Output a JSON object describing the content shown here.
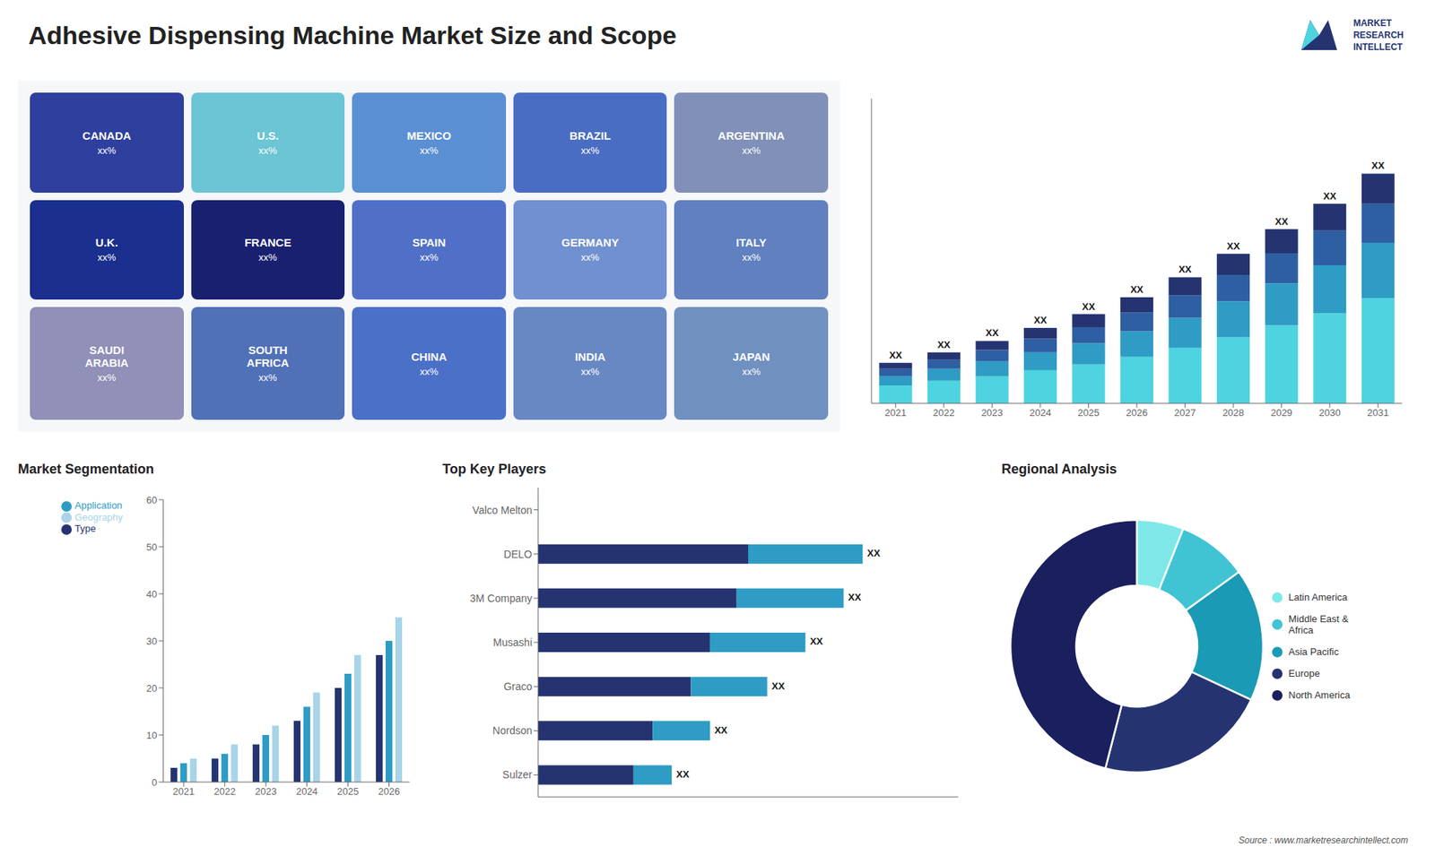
{
  "title": "Adhesive Dispensing Machine Market Size and Scope",
  "annotations": [
    "MARKET",
    "RESEARCH",
    "INTELLECT",
    "Source : www.marketresearchintellect.com"
  ],
  "chart_data": [
    {
      "type": "map",
      "categories": [
        "CANADA",
        "U.S.",
        "MEXICO",
        "BRAZIL",
        "ARGENTINA",
        "U.K.",
        "FRANCE",
        "SPAIN",
        "GERMANY",
        "ITALY",
        "SAUDI\nARABIA",
        "SOUTH\nAFRICA",
        "CHINA",
        "INDIA",
        "JAPAN"
      ],
      "colors": [
        "#2e3f9e",
        "#6bc5d4",
        "#5b8fd4",
        "#4a6dc4",
        "#8090b8",
        "#1a2f8e",
        "#1a2070",
        "#5070c8",
        "#7090d0",
        "#6080c0",
        "#9090b8",
        "#5070b8",
        "#4a70c8",
        "#6888c4",
        "#7090c0"
      ],
      "value_labels": [
        "xx%",
        "xx%",
        "xx%",
        "xx%",
        "xx%",
        "xx%",
        "xx%",
        "xx%",
        "xx%",
        "xx%",
        "xx%",
        "xx%",
        "xx%",
        "xx%",
        "xx%"
      ]
    },
    {
      "type": "bar",
      "stacked": true,
      "categories": [
        "2021",
        "2022",
        "2023",
        "2024",
        "2025",
        "2026",
        "2027",
        "2028",
        "2029",
        "2030",
        "2031"
      ],
      "series": [
        {
          "color": "#4dd4e0",
          "values": [
            0.6,
            0.75,
            0.9,
            1.1,
            1.3,
            1.55,
            1.85,
            2.2,
            2.6,
            3.0,
            3.5
          ]
        },
        {
          "color": "#2e9cc4",
          "values": [
            0.3,
            0.4,
            0.5,
            0.6,
            0.7,
            0.85,
            1.0,
            1.2,
            1.4,
            1.6,
            1.85
          ]
        },
        {
          "color": "#2e5fa3",
          "values": [
            0.25,
            0.3,
            0.38,
            0.45,
            0.54,
            0.63,
            0.75,
            0.88,
            1.0,
            1.15,
            1.3
          ]
        },
        {
          "color": "#253471",
          "values": [
            0.2,
            0.25,
            0.3,
            0.36,
            0.43,
            0.5,
            0.6,
            0.7,
            0.8,
            0.9,
            1.0
          ],
          "value_labels": [
            "XX",
            "XX",
            "XX",
            "XX",
            "XX",
            "XX",
            "XX",
            "XX",
            "XX",
            "XX",
            "XX"
          ]
        }
      ],
      "ylim": [
        0,
        10.15
      ],
      "tick_labels": "x",
      "grid": false
    },
    {
      "type": "bar",
      "title": "Market Segmentation",
      "categories": [
        "2021",
        "2022",
        "2023",
        "2024",
        "2025",
        "2026"
      ],
      "series": [
        {
          "name": "Type",
          "color": "#253471",
          "values": [
            3,
            5,
            8,
            13,
            20,
            27
          ]
        },
        {
          "name": "Application",
          "color": "#2e9cc4",
          "values": [
            4,
            6,
            10,
            16,
            23,
            30
          ]
        },
        {
          "name": "Geography",
          "color": "#a8d4e8",
          "values": [
            5,
            8,
            12,
            19,
            27,
            35
          ]
        }
      ],
      "ylim": [
        0,
        60
      ],
      "yticks": [
        0,
        10,
        20,
        30,
        40,
        50,
        60
      ],
      "legend": "upper left",
      "grid": false
    },
    {
      "type": "bar",
      "title": "Top Key Players",
      "orientation": "horizontal",
      "stacked": true,
      "categories": [
        "Valco Melton",
        "DELO",
        "3M Company",
        "Musashi",
        "Graco",
        "Nordson",
        "Sulzer"
      ],
      "series": [
        {
          "color": "#253471",
          "values": [
            0,
            5.5,
            5.2,
            4.5,
            4.0,
            3.0,
            2.5
          ]
        },
        {
          "color": "#2e9cc4",
          "values": [
            0,
            3.0,
            2.8,
            2.5,
            2.0,
            1.5,
            1.0
          ],
          "value_labels": [
            null,
            "XX",
            "XX",
            "XX",
            "XX",
            "XX",
            "XX"
          ]
        }
      ],
      "xlim": [
        0,
        11
      ],
      "tick_labels": "y",
      "grid": false
    },
    {
      "type": "pie",
      "title": "Regional Analysis",
      "categories": [
        "Latin America",
        "Middle East &\nAfrica",
        "Asia Pacific",
        "Europe",
        "North America"
      ],
      "values": [
        6,
        9,
        17,
        22,
        46
      ],
      "colors": [
        "#7ee8e8",
        "#40c4d4",
        "#1a9ab5",
        "#253471",
        "#1a1f5e"
      ],
      "legend": "right"
    }
  ]
}
